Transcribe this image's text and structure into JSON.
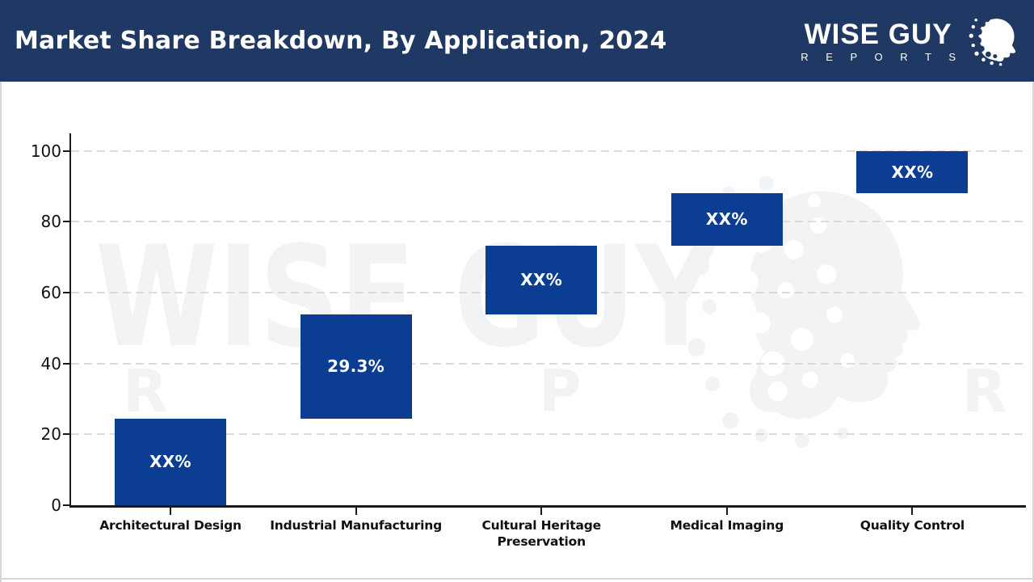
{
  "header": {
    "title": "Market Share Breakdown, By Application, 2024",
    "logo": {
      "name_line": "WISE GUY",
      "sub_line": "R E P O R T S"
    }
  },
  "watermark": {
    "line1": "WISE GUY",
    "line2": "R E P O R T S"
  },
  "chart_data": {
    "type": "bar",
    "subtype": "waterfall-floating-bars",
    "title": "Market Share Breakdown, By Application, 2024",
    "categories": [
      "Architectural Design",
      "Industrial Manufacturing",
      "Cultural Heritage Preservation",
      "Medical Imaging",
      "Quality Control"
    ],
    "series": [
      {
        "category": "Architectural Design",
        "start": 0,
        "end": 24.5,
        "label": "XX%"
      },
      {
        "category": "Industrial Manufacturing",
        "start": 24.5,
        "end": 53.8,
        "label": "29.3%"
      },
      {
        "category": "Cultural Heritage Preservation",
        "start": 53.8,
        "end": 73.3,
        "label": "XX%"
      },
      {
        "category": "Medical Imaging",
        "start": 73.3,
        "end": 88.0,
        "label": "XX%"
      },
      {
        "category": "Quality Control",
        "start": 88.0,
        "end": 100.0,
        "label": "XX%"
      }
    ],
    "xlabel": "",
    "ylabel": "",
    "ylim": [
      0,
      105
    ],
    "yticks": [
      0,
      20,
      40,
      60,
      80,
      100
    ],
    "grid": "horizontal dashed",
    "legend": "none",
    "colors": {
      "bar": "#0b3e92",
      "bar_label": "#ffffff",
      "axis": "#1a1a1a",
      "grid": "#dcdcdc",
      "header_bg": "#203864",
      "watermark": "#f2f3f5"
    }
  }
}
